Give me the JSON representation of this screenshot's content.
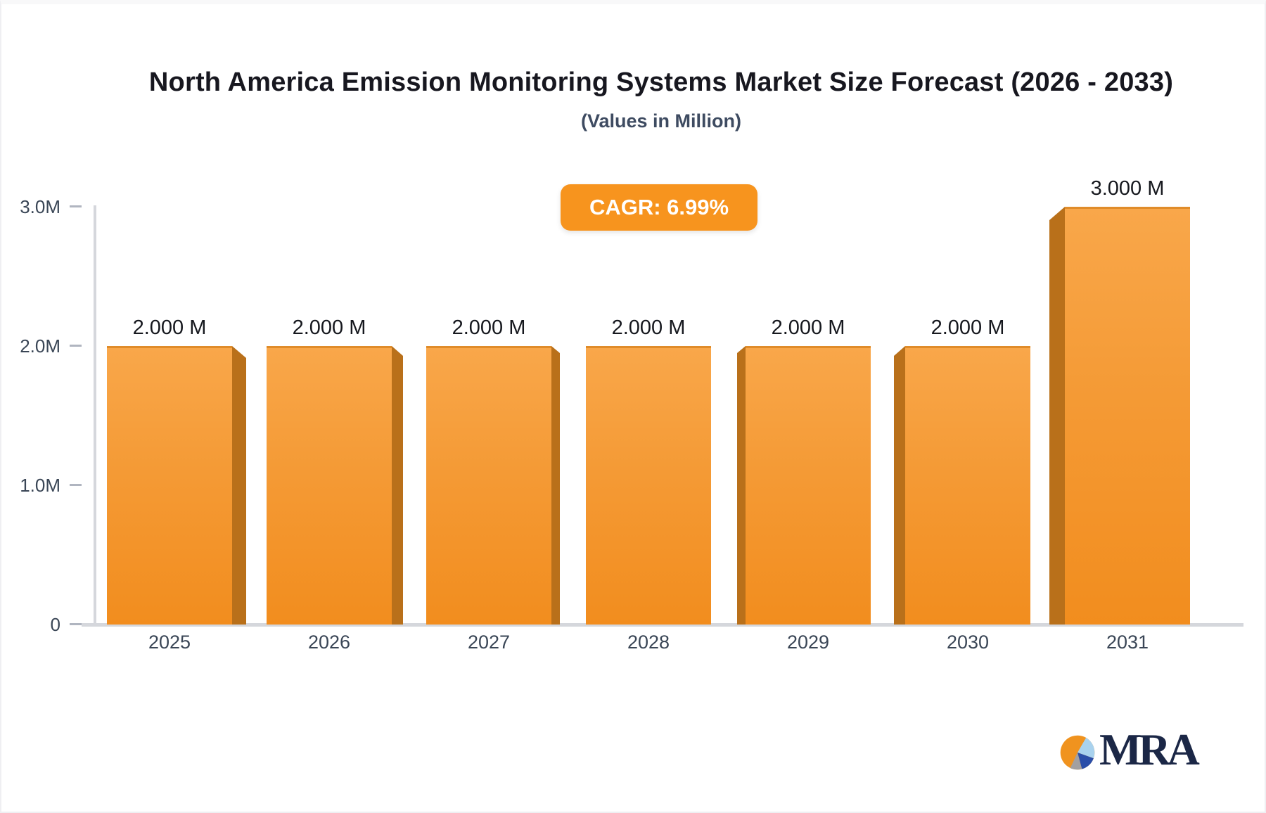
{
  "header": {
    "title": "North America Emission Monitoring Systems Market Size Forecast (2026 - 2033)",
    "subtitle": "(Values in Million)"
  },
  "chart_data": {
    "type": "bar",
    "title": "North America Emission Monitoring Systems Market Size Forecast (2026 - 2033)",
    "subtitle": "(Values in Million)",
    "annotation": "CAGR: 6.99%",
    "unit": "Million",
    "categories": [
      "2025",
      "2026",
      "2027",
      "2028",
      "2029",
      "2030",
      "2031"
    ],
    "values": [
      2.0,
      2.0,
      2.0,
      2.0,
      2.0,
      2.0,
      3.0
    ],
    "value_labels": [
      "2.000 M",
      "2.000 M",
      "2.000 M",
      "2.000 M",
      "2.000 M",
      "2.000 M",
      "3.000 M"
    ],
    "ylim": [
      0,
      3.0
    ],
    "ytick_values": [
      0,
      1,
      2,
      3
    ],
    "ytick_labels": [
      "0",
      "1.0M",
      "2.0M",
      "3.0M"
    ],
    "xlabel": "",
    "ylabel": "",
    "grid": false,
    "legend": "none",
    "bar_style": "3d",
    "colors": {
      "accent": "#F7941E",
      "bar_face_top": "#F9A74A",
      "bar_face_mid": "#F49A35",
      "bar_face_bottom": "#F28D1E",
      "bar_top_edge": "#E08C2A",
      "bar_side": "#B9701A",
      "axis_line": "#D5D7DC",
      "tick_label": "#3A4656",
      "value_label": "#16181E",
      "title": "#17171F",
      "subtitle": "#3E4B61"
    }
  },
  "logo": {
    "text": "MRA",
    "pie_colors": {
      "orange": "#F0931F",
      "light_blue": "#A9D2EE",
      "dark_blue": "#2B4EA8",
      "gray": "#A3A0A0"
    }
  }
}
